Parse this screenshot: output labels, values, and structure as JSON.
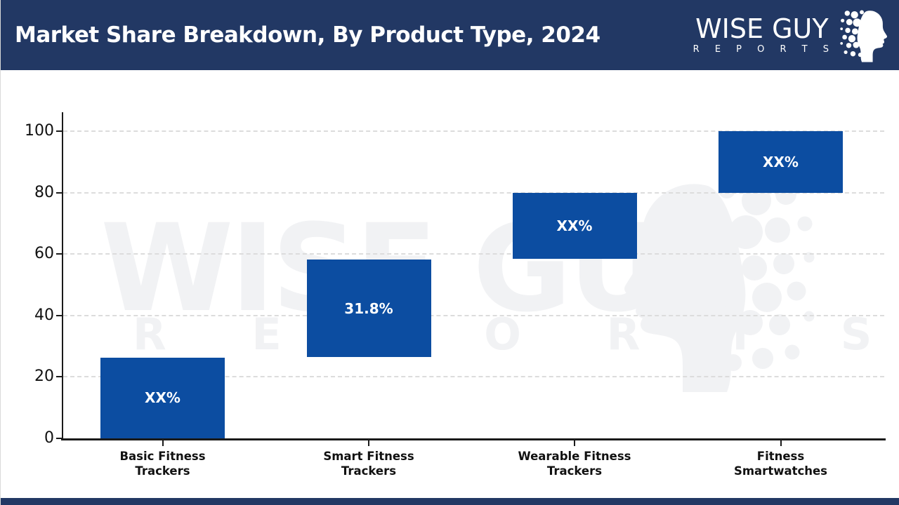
{
  "header": {
    "title": "Market Share Breakdown, By Product Type, 2024",
    "logo": {
      "name": "WISE GUY",
      "sub": "R E P O R T S"
    },
    "bg_color": "#223864"
  },
  "watermark": {
    "name": "WISE GUY",
    "sub": "R E P O R T S",
    "color": "#f1f2f4"
  },
  "footer": {
    "bg_color": "#223864"
  },
  "chart_data": {
    "type": "bar",
    "subtype": "waterfall-floating-bars",
    "title": "Market Share Breakdown, By Product Type, 2024",
    "xlabel": "",
    "ylabel": "",
    "ylim": [
      0,
      100
    ],
    "yticks": [
      0,
      20,
      40,
      60,
      80,
      100
    ],
    "grid": "horizontal-dashed",
    "legend": "none",
    "bar_color": "#0c4da1",
    "bar_label_color": "#ffffff",
    "categories": [
      "Basic Fitness Trackers",
      "Smart Fitness Trackers",
      "Wearable Fitness Trackers",
      "Fitness Smartwatches"
    ],
    "bars": [
      {
        "category": "Basic Fitness Trackers",
        "category_lines": [
          "Basic Fitness",
          "Trackers"
        ],
        "label": "XX%",
        "start": 0,
        "end": 26.3
      },
      {
        "category": "Smart Fitness Trackers",
        "category_lines": [
          "Smart Fitness",
          "Trackers"
        ],
        "label": "31.8%",
        "start": 26.4,
        "end": 58.2
      },
      {
        "category": "Wearable Fitness Trackers",
        "category_lines": [
          "Wearable Fitness",
          "Trackers"
        ],
        "label": "XX%",
        "start": 58.5,
        "end": 80
      },
      {
        "category": "Fitness Smartwatches",
        "category_lines": [
          "Fitness",
          "Smartwatches"
        ],
        "label": "XX%",
        "start": 80,
        "end": 100
      }
    ]
  }
}
